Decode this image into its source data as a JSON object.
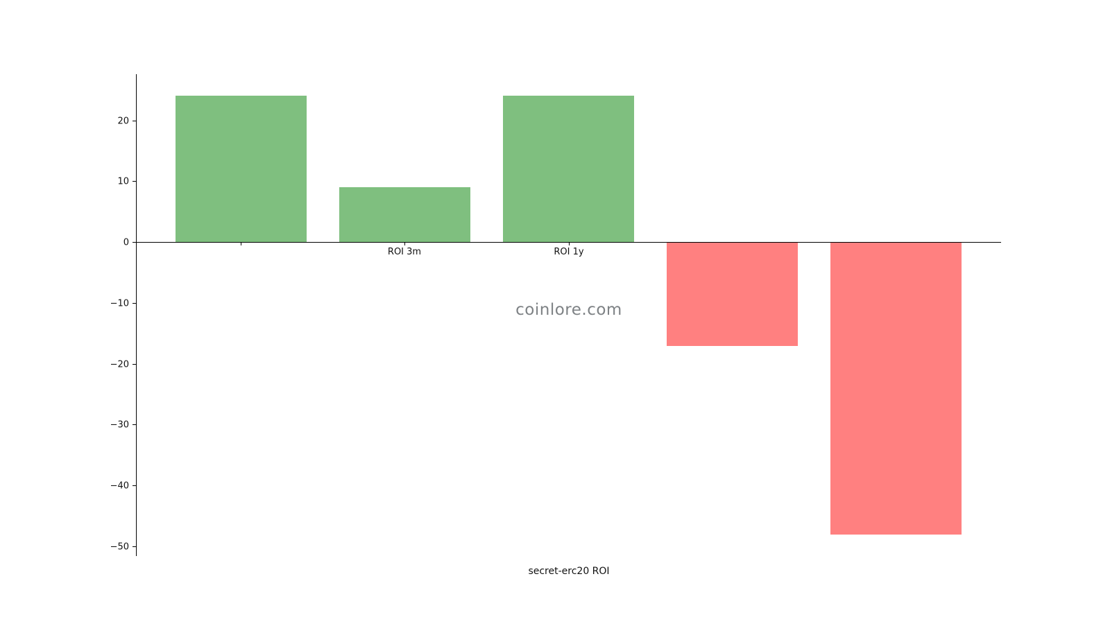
{
  "chart_data": {
    "type": "bar",
    "categories": [
      "",
      "ROI 3m",
      "ROI 1y",
      "",
      ""
    ],
    "values": [
      24,
      9,
      24,
      -17,
      -48
    ],
    "series": [
      {
        "name": "secret-erc20 ROI",
        "values": [
          24,
          9,
          24,
          -17,
          -48
        ]
      }
    ],
    "xticks": [
      {
        "index": 0,
        "label": ""
      },
      {
        "index": 1,
        "label": "ROI 3m"
      },
      {
        "index": 2,
        "label": "ROI 1y"
      }
    ],
    "yticks": [
      20,
      10,
      0,
      -10,
      -20,
      -30,
      -40,
      -50
    ],
    "ylim": [
      -51.6,
      27.6
    ],
    "title": "",
    "xlabel": "secret-erc20 ROI",
    "ylabel": "",
    "grid": false,
    "legend": null,
    "bar_width_fraction": 0.8,
    "positive_color": "#7fbf7f",
    "negative_color": "#ff8080",
    "axis_color": "#000000",
    "tick_label_color": "#111111"
  },
  "watermark": {
    "text": "coinlore.com",
    "color": "#7e8285"
  }
}
